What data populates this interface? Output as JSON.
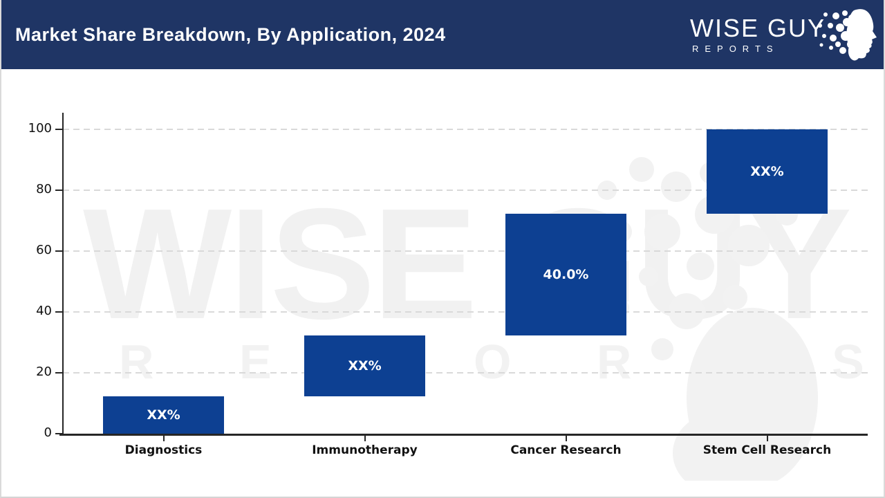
{
  "header": {
    "title": "Market Share Breakdown, By Application, 2024",
    "logo": {
      "line1": "WISE GUY",
      "line2": "REPORTS"
    }
  },
  "watermark": {
    "line1": "WISE GUY",
    "line2": "R E P O R T S"
  },
  "colors": {
    "header_bg": "#1f3565",
    "bar": "#0d4092",
    "bar_label": "#ffffff",
    "grid": "#d9d9d9",
    "axis": "#262626",
    "watermark": "#f1f1f1"
  },
  "chart_data": {
    "type": "bar",
    "variant": "waterfall-floating",
    "title": "Market Share Breakdown, By Application, 2024",
    "xlabel": "",
    "ylabel": "",
    "categories": [
      "Diagnostics",
      "Immunotherapy",
      "Cancer Research",
      "Stem Cell Research"
    ],
    "segments": [
      {
        "category": "Diagnostics",
        "start": 0,
        "end": 12.3,
        "value": 12.3,
        "label": "XX%"
      },
      {
        "category": "Immunotherapy",
        "start": 12.3,
        "end": 32.3,
        "value": 20.0,
        "label": "XX%"
      },
      {
        "category": "Cancer Research",
        "start": 32.3,
        "end": 72.3,
        "value": 40.0,
        "label": "40.0%"
      },
      {
        "category": "Stem Cell Research",
        "start": 72.3,
        "end": 100,
        "value": 27.7,
        "label": "XX%"
      }
    ],
    "axis_min": 0,
    "axis_max": 100,
    "yticks": [
      0,
      20,
      40,
      60,
      80,
      100
    ],
    "grid": "horizontal-dashed",
    "legend": "none"
  }
}
